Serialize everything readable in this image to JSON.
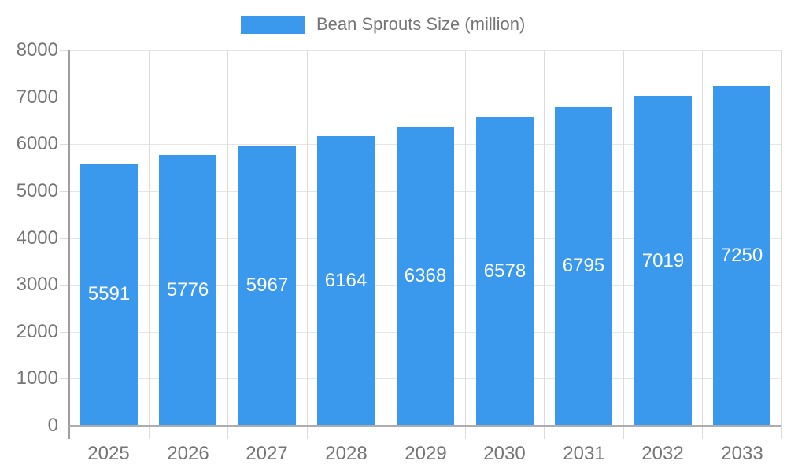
{
  "legend": {
    "label": "Bean Sprouts Size (million)",
    "swatch_color": "#3B99ED"
  },
  "chart_data": {
    "type": "bar",
    "title": "Bean Sprouts Size (million)",
    "categories": [
      "2025",
      "2026",
      "2027",
      "2028",
      "2029",
      "2030",
      "2031",
      "2032",
      "2033"
    ],
    "values": [
      5591,
      5776,
      5967,
      6164,
      6368,
      6578,
      6795,
      7019,
      7250
    ],
    "xlabel": "",
    "ylabel": "",
    "ylim": [
      0,
      8000
    ],
    "ytick_step": 1000,
    "yticks": [
      0,
      1000,
      2000,
      3000,
      4000,
      5000,
      6000,
      7000,
      8000
    ],
    "grid": true,
    "legend_position": "top",
    "bar_color": "#3B99ED",
    "bar_label_color": "#FFFFFF",
    "axis_text_color": "#757575",
    "hgrid_color": "#E6E6E6",
    "vgrid_color": "#DCDCDC",
    "tick_color": "#DCDCDC",
    "y_axis_line_color": "#9E9E9E",
    "x_axis_line_color": "#ADADAD"
  }
}
